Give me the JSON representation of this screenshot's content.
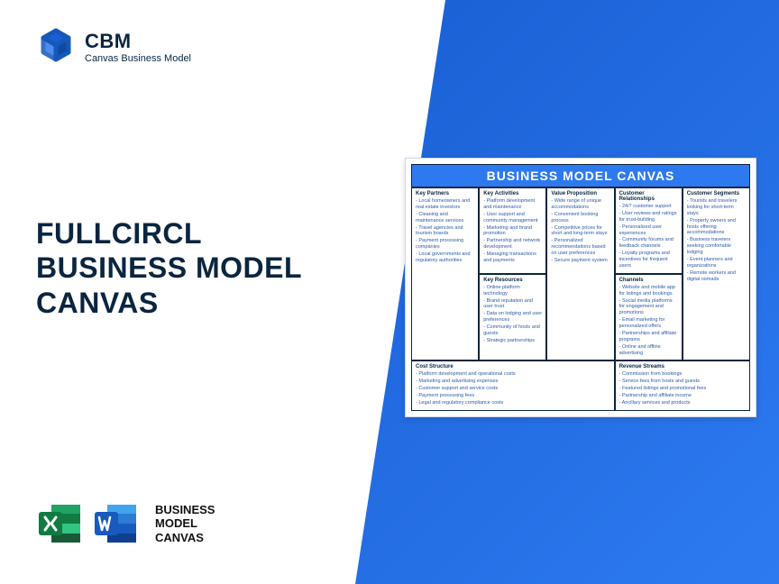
{
  "logo": {
    "brand": "CBM",
    "sub": "Canvas Business Model"
  },
  "title": "FULLCIRCL BUSINESS MODEL CANVAS",
  "bmc_label_lines": [
    "BUSINESS",
    "MODEL",
    "CANVAS"
  ],
  "canvas": {
    "title": "BUSINESS MODEL CANVAS",
    "colors": {
      "header_bg": "#2d7af0",
      "header_text": "#ffffff",
      "border": "#0a2540",
      "text": "#2d5ba8"
    },
    "sections": {
      "kp": {
        "title": "Key Partners",
        "items": [
          "Local homeowners and real estate investors",
          "Cleaning and maintenance services",
          "Travel agencies and tourism boards",
          "Payment processing companies",
          "Local governments and regulatory authorities"
        ]
      },
      "ka": {
        "title": "Key Activities",
        "items": [
          "Platform development and maintenance",
          "User support and community management",
          "Marketing and brand promotion",
          "Partnership and network development",
          "Managing transactions and payments"
        ]
      },
      "vp": {
        "title": "Value Proposition",
        "items": [
          "Wide range of unique accommodations",
          "Convenient booking process",
          "Competitive prices for short and long-term stays",
          "Personalized recommendations based on user preferences",
          "Secure payment system"
        ]
      },
      "cr": {
        "title": "Customer Relationships",
        "items": [
          "24/7 customer support",
          "User reviews and ratings for trust-building",
          "Personalized user experiences",
          "Community forums and feedback channels",
          "Loyalty programs and incentives for frequent users"
        ]
      },
      "cs": {
        "title": "Customer Segments",
        "items": [
          "Tourists and travelers looking for short-term stays",
          "Property owners and hosts offering accommodations",
          "Business travelers seeking comfortable lodging",
          "Event planners and organizations",
          "Remote workers and digital nomads"
        ]
      },
      "kr": {
        "title": "Key Resources",
        "items": [
          "Online platform technology",
          "Brand reputation and user trust",
          "Data on lodging and user preferences",
          "Community of hosts and guests",
          "Strategic partnerships"
        ]
      },
      "ch": {
        "title": "Channels",
        "items": [
          "Website and mobile app for listings and bookings",
          "Social media platforms for engagement and promotions",
          "Email marketing for personalized offers",
          "Partnerships and affiliate programs",
          "Online and offline advertising"
        ]
      },
      "cost": {
        "title": "Cost Structure",
        "items": [
          "Platform development and operational costs",
          "Marketing and advertising expenses",
          "Customer support and service costs",
          "Payment processing fees",
          "Legal and regulatory compliance costs"
        ]
      },
      "rev": {
        "title": "Revenue Streams",
        "items": [
          "Commission from bookings",
          "Service fees from hosts and guests",
          "Featured listings and promotional fees",
          "Partnership and affiliate income",
          "Ancillary services and products"
        ]
      }
    }
  }
}
